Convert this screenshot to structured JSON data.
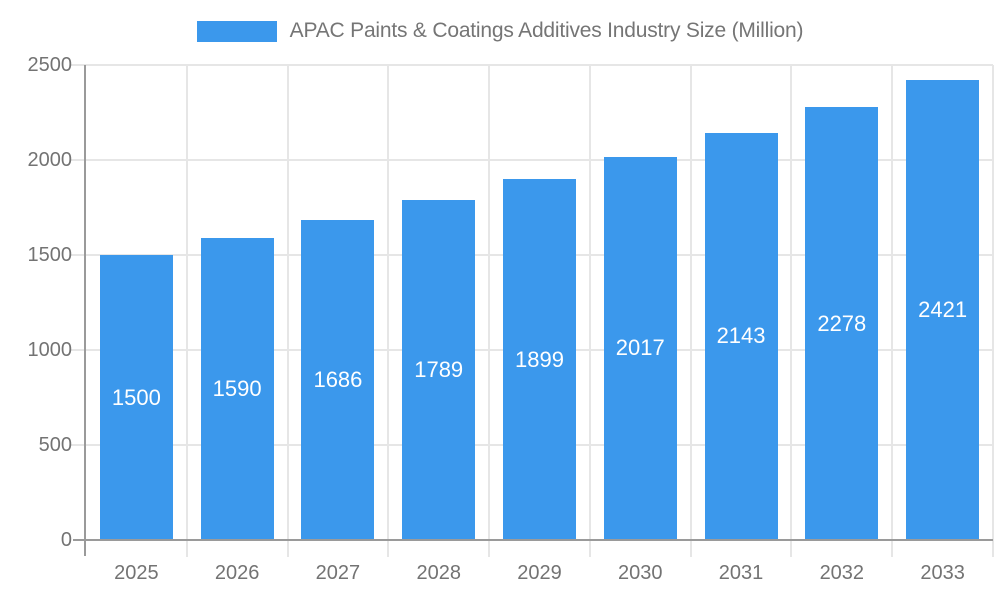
{
  "legend": {
    "label": "APAC Paints & Coatings Additives Industry Size (Million)"
  },
  "colors": {
    "bar": "#3B98EC",
    "grid": "#E6E6E6",
    "axis": "#9A9A9A",
    "tick_text": "#737373",
    "legend_text": "#757575",
    "value_text": "#FFFFFF",
    "background": "#FFFFFF"
  },
  "chart_data": {
    "type": "bar",
    "title": "APAC Paints & Coatings Additives Industry Size (Million)",
    "categories": [
      "2025",
      "2026",
      "2027",
      "2028",
      "2029",
      "2030",
      "2031",
      "2032",
      "2033"
    ],
    "values": [
      1500,
      1590,
      1686,
      1789,
      1899,
      2017,
      2143,
      2278,
      2421
    ],
    "series": [
      {
        "name": "APAC Paints & Coatings Additives Industry Size (Million)",
        "values": [
          1500,
          1590,
          1686,
          1789,
          1899,
          2017,
          2143,
          2278,
          2421
        ]
      }
    ],
    "xlabel": "",
    "ylabel": "",
    "ylim": [
      0,
      2500
    ],
    "yticks": [
      0,
      500,
      1000,
      1500,
      2000,
      2500
    ],
    "grid": true,
    "legend_position": "top-center",
    "value_labels": "inside-center"
  }
}
